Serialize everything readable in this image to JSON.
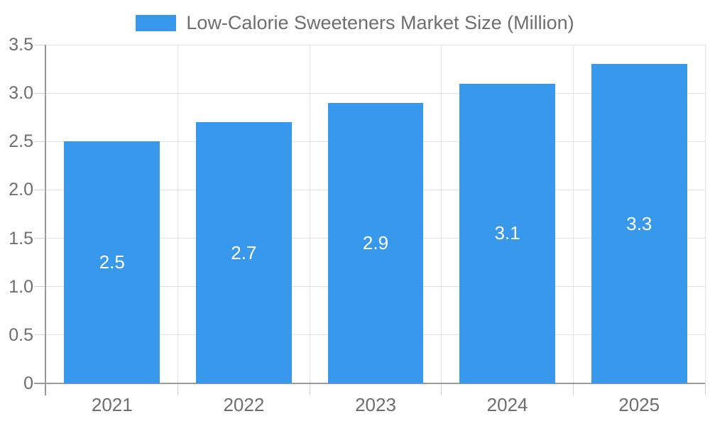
{
  "chart_data": {
    "type": "bar",
    "title": "Low-Calorie Sweeteners Market Size (Million)",
    "categories": [
      "2021",
      "2022",
      "2023",
      "2024",
      "2025"
    ],
    "series": [
      {
        "name": "Low-Calorie Sweeteners Market Size (Million)",
        "values": [
          2.5,
          2.7,
          2.9,
          3.1,
          3.3
        ]
      }
    ],
    "bar_labels": [
      "2.5",
      "2.7",
      "2.9",
      "3.1",
      "3.3"
    ],
    "xlabel": "",
    "ylabel": "",
    "ylim": [
      0,
      3.5
    ],
    "y_ticks": [
      0,
      0.5,
      1.0,
      1.5,
      2.0,
      2.5,
      3.0,
      3.5
    ],
    "y_tick_labels": [
      "0",
      "0.5",
      "1.0",
      "1.5",
      "2.0",
      "2.5",
      "3.0",
      "3.5"
    ],
    "grid": "on",
    "legend_position": "top-center"
  },
  "colors": {
    "bar": "#3899EC",
    "grid": "#E3E3E3",
    "tick": "#D2D2D2",
    "axis": "#9B9B9B",
    "label_text": "#6E6E6E",
    "bar_label_text": "#FFFFFF",
    "background": "#FFFFFF"
  }
}
